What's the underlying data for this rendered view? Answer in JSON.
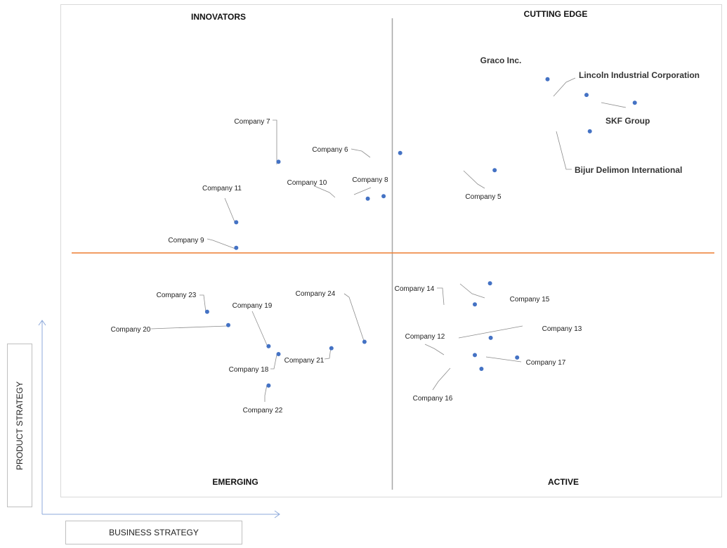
{
  "chart_data": {
    "type": "scatter",
    "xlabel": "BUSINESS STRATEGY",
    "ylabel": "PRODUCT STRATEGY",
    "xlim": [
      0,
      100
    ],
    "ylim": [
      0,
      100
    ],
    "quadrants": {
      "top_left": "INNOVATORS",
      "top_right": "CUTTING EDGE",
      "bottom_left": "EMERGING",
      "bottom_right": "ACTIVE"
    },
    "colors": {
      "point": "#4472c4",
      "horizontal_divider": "#ed7d31",
      "vertical_divider": "#a6a6a6",
      "leader": "#8c8c8c"
    },
    "points": [
      {
        "name": "Graco Inc.",
        "x": 73.7,
        "y": 84.9,
        "emphasis": true
      },
      {
        "name": "Lincoln Industrial Corporation",
        "x": 79.6,
        "y": 81.7,
        "emphasis": true
      },
      {
        "name": "SKF Group",
        "x": 86.9,
        "y": 80.1,
        "emphasis": true
      },
      {
        "name": "Bijur Delimon International",
        "x": 80.1,
        "y": 74.3,
        "emphasis": true
      },
      {
        "name": "Company 5",
        "x": 65.7,
        "y": 66.4
      },
      {
        "name": "Company 6",
        "x": 51.4,
        "y": 69.9
      },
      {
        "name": "Company 7",
        "x": 33.0,
        "y": 68.1
      },
      {
        "name": "Company 8",
        "x": 48.9,
        "y": 61.1
      },
      {
        "name": "Company 10",
        "x": 46.5,
        "y": 60.6
      },
      {
        "name": "Company 11",
        "x": 26.6,
        "y": 55.8
      },
      {
        "name": "Company 9",
        "x": 26.6,
        "y": 50.6
      },
      {
        "name": "Company 14",
        "x": 62.7,
        "y": 39.1
      },
      {
        "name": "Company 15",
        "x": 65.0,
        "y": 43.4
      },
      {
        "name": "Company 13",
        "x": 65.1,
        "y": 32.3
      },
      {
        "name": "Company 12",
        "x": 62.7,
        "y": 28.8
      },
      {
        "name": "Company 17",
        "x": 69.1,
        "y": 28.3
      },
      {
        "name": "Company 16",
        "x": 63.7,
        "y": 26.0
      },
      {
        "name": "Company 23",
        "x": 22.2,
        "y": 37.6
      },
      {
        "name": "Company 20",
        "x": 25.4,
        "y": 34.9
      },
      {
        "name": "Company 19",
        "x": 31.5,
        "y": 30.6
      },
      {
        "name": "Company 18",
        "x": 33.0,
        "y": 29.0
      },
      {
        "name": "Company 21",
        "x": 41.0,
        "y": 30.2
      },
      {
        "name": "Company 24",
        "x": 46.0,
        "y": 31.5
      },
      {
        "name": "Company 22",
        "x": 31.5,
        "y": 22.6
      }
    ]
  }
}
